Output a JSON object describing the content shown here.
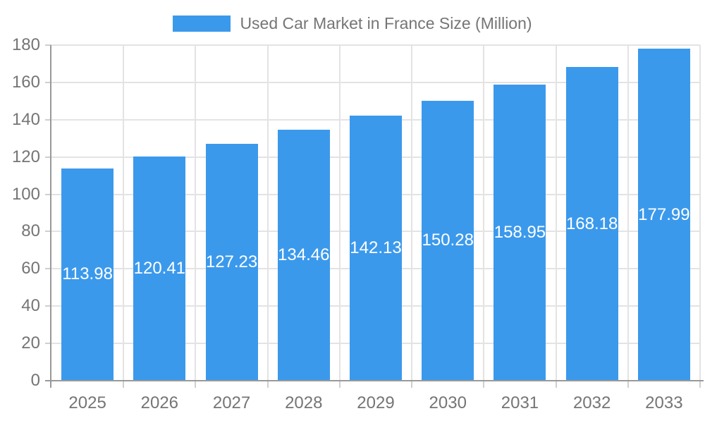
{
  "legend": {
    "label": "Used Car Market in France Size (Million)"
  },
  "chart_data": {
    "type": "bar",
    "title": "Used Car Market in France Size (Million)",
    "categories": [
      "2025",
      "2026",
      "2027",
      "2028",
      "2029",
      "2030",
      "2031",
      "2032",
      "2033"
    ],
    "values": [
      113.98,
      120.41,
      127.23,
      134.46,
      142.13,
      150.28,
      158.95,
      168.18,
      177.99
    ],
    "value_labels": [
      "113.98",
      "120.41",
      "127.23",
      "134.46",
      "142.13",
      "150.28",
      "158.95",
      "168.18",
      "177.99"
    ],
    "xlabel": "",
    "ylabel": "",
    "ylim": [
      0,
      180
    ],
    "yticks": [
      0,
      20,
      40,
      60,
      80,
      100,
      120,
      140,
      160,
      180
    ],
    "grid": true,
    "vertical_grid": true,
    "legend_position": "top",
    "value_label_position": "center-of-bar",
    "colors": {
      "bar": "#3b99ec",
      "grid": "#e3e3e3",
      "axis_line": "#999999",
      "tick": "#cfcfcf",
      "label": "#757575",
      "value_label": "#ffffff",
      "background": "#ffffff"
    }
  }
}
